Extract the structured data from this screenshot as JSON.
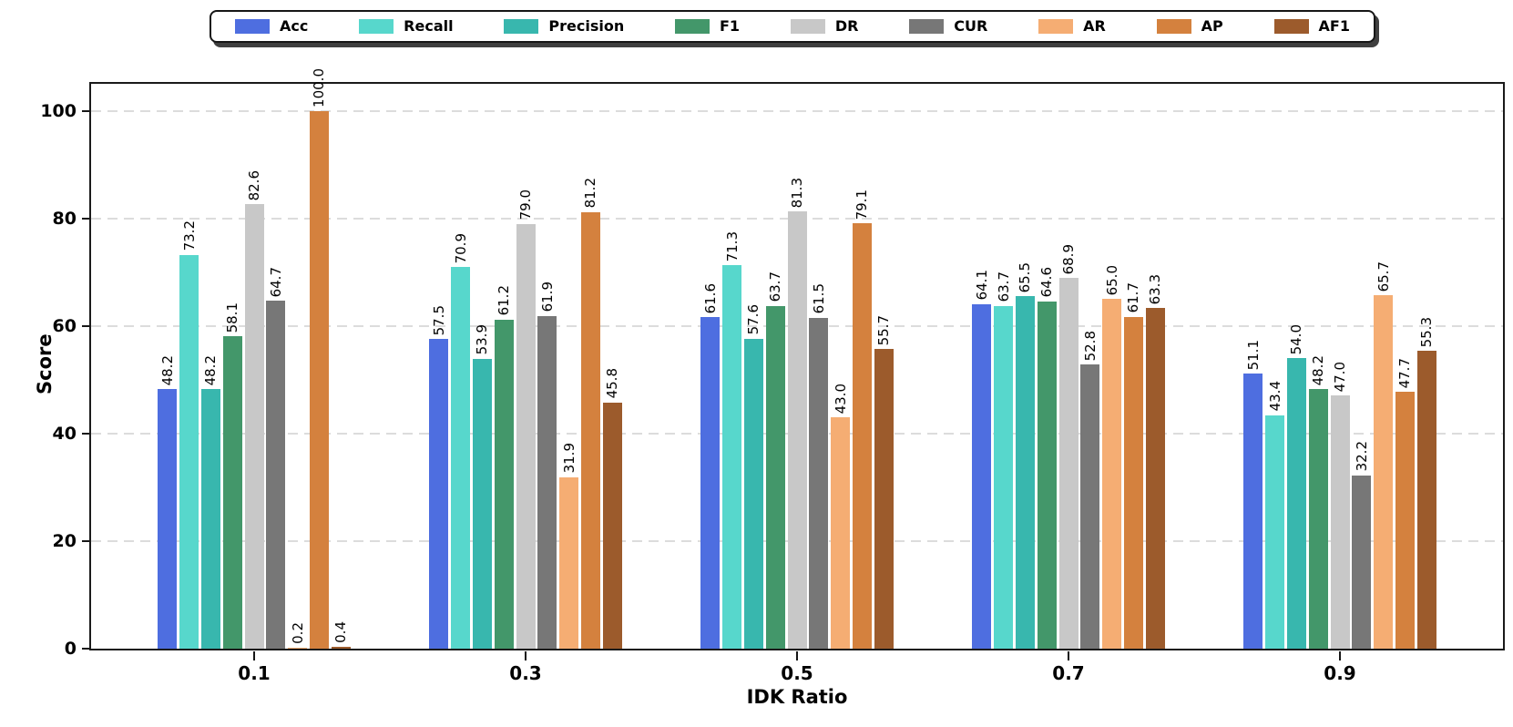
{
  "chart_data": {
    "type": "bar",
    "title": "",
    "xlabel": "IDK Ratio",
    "ylabel": "Score",
    "categories": [
      "0.1",
      "0.3",
      "0.5",
      "0.7",
      "0.9"
    ],
    "ylim": [
      0,
      105
    ],
    "yticks": [
      0,
      20,
      40,
      60,
      80,
      100
    ],
    "grid": {
      "axis": "y",
      "style": "dashed",
      "color": "#dcdcdc"
    },
    "legend_position": "top-center",
    "bar_label_format": "x.x",
    "bar_label_rotation": 90,
    "frame_color": "#1a1a1a",
    "series": [
      {
        "name": "Acc",
        "color": "#4e6ee0",
        "hatch": "/",
        "values": [
          48.2,
          57.5,
          61.6,
          64.1,
          51.1
        ]
      },
      {
        "name": "Recall",
        "color": "#57d7cc",
        "hatch": "",
        "values": [
          73.2,
          70.9,
          71.3,
          63.7,
          43.4
        ]
      },
      {
        "name": "Precision",
        "color": "#38b7ae",
        "hatch": "",
        "values": [
          48.2,
          53.9,
          57.6,
          65.5,
          54.0
        ]
      },
      {
        "name": "F1",
        "color": "#43976a",
        "hatch": "",
        "values": [
          58.1,
          61.2,
          63.7,
          64.6,
          48.2
        ]
      },
      {
        "name": "DR",
        "color": "#c8c8c8",
        "hatch": "",
        "values": [
          82.6,
          79.0,
          81.3,
          68.9,
          47.0
        ]
      },
      {
        "name": "CUR",
        "color": "#777777",
        "hatch": "",
        "values": [
          64.7,
          61.9,
          61.5,
          52.8,
          32.2
        ]
      },
      {
        "name": "AR",
        "color": "#f5ad73",
        "hatch": "",
        "values": [
          0.2,
          31.9,
          43.0,
          65.0,
          65.7
        ]
      },
      {
        "name": "AP",
        "color": "#d4813e",
        "hatch": "",
        "values": [
          100.0,
          81.2,
          79.1,
          61.7,
          47.7
        ]
      },
      {
        "name": "AF1",
        "color": "#9c5b2c",
        "hatch": "",
        "values": [
          0.4,
          45.8,
          55.7,
          63.3,
          55.3
        ]
      }
    ]
  }
}
